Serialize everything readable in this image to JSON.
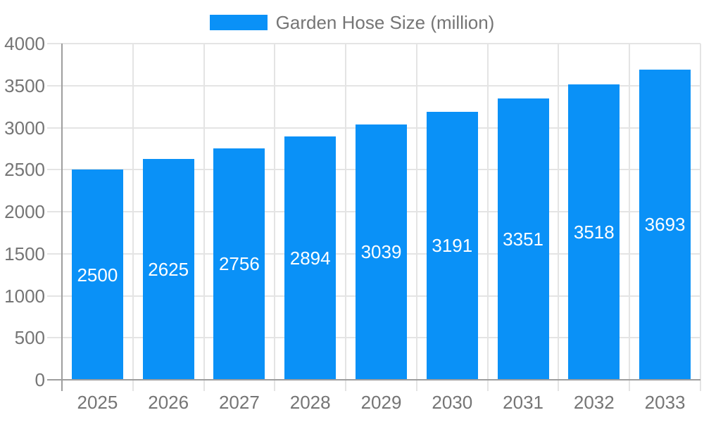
{
  "legend": {
    "label": "Garden Hose Size (million)"
  },
  "chart_data": {
    "type": "bar",
    "title": "Garden Hose Size (million)",
    "categories": [
      "2025",
      "2026",
      "2027",
      "2028",
      "2029",
      "2030",
      "2031",
      "2032",
      "2033"
    ],
    "series": [
      {
        "name": "Garden Hose Size (million)",
        "values": [
          2500,
          2625,
          2756,
          2894,
          3039,
          3191,
          3351,
          3518,
          3693
        ]
      }
    ],
    "values": [
      2500,
      2625,
      2756,
      2894,
      3039,
      3191,
      3351,
      3518,
      3693
    ],
    "bar_value_labels": [
      "2500",
      "2625",
      "2756",
      "2894",
      "3039",
      "3191",
      "3351",
      "3518",
      "3693"
    ],
    "xlabel": "",
    "ylabel": "",
    "ylim": [
      0,
      4000
    ],
    "yticks": [
      0,
      500,
      1000,
      1500,
      2000,
      2500,
      3000,
      3500,
      4000
    ],
    "grid": true,
    "legend_position": "top-center"
  },
  "colors": {
    "bar": "#0a91f7",
    "grid": "#e4e4e4",
    "axis": "#9e9e9e",
    "tick_label": "#757575",
    "bar_label": "#ffffff",
    "background": "#ffffff"
  }
}
